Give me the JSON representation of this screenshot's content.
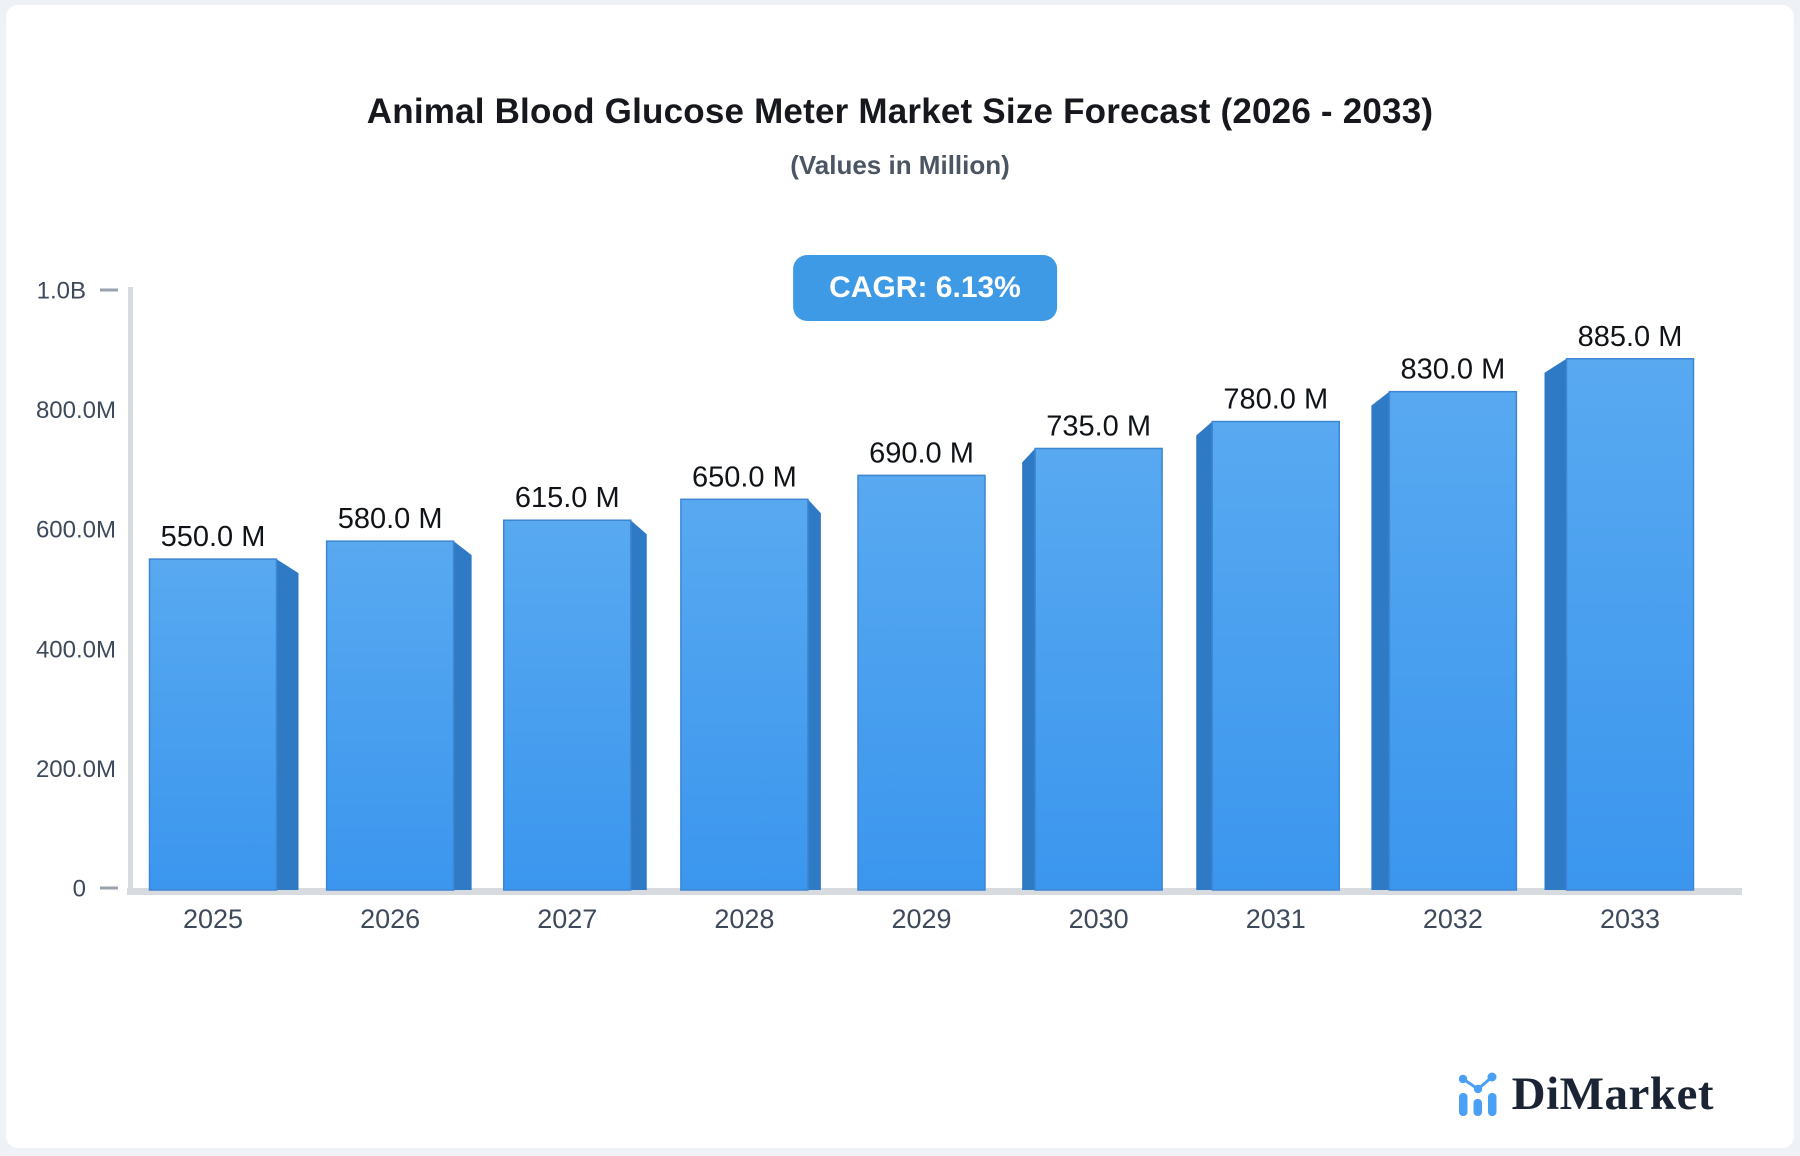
{
  "page": {
    "background": "#eef1f5",
    "card_background": "#ffffff"
  },
  "header": {
    "title": "Animal Blood Glucose Meter Market Size Forecast (2026 - 2033)",
    "subtitle": "(Values in Million)"
  },
  "badge": {
    "label": "CAGR: 6.13%",
    "background": "#3f9ae5",
    "text_color": "#ffffff"
  },
  "chart_data": {
    "type": "bar",
    "title": "Animal Blood Glucose Meter Market Size Forecast (2026 - 2033)",
    "subtitle": "(Values in Million)",
    "cagr": "6.13%",
    "categories": [
      "2025",
      "2026",
      "2027",
      "2028",
      "2029",
      "2030",
      "2031",
      "2032",
      "2033"
    ],
    "values": [
      550,
      580,
      615,
      650,
      690,
      735,
      780,
      830,
      885
    ],
    "value_labels": [
      "550.0 M",
      "580.0 M",
      "615.0 M",
      "650.0 M",
      "690.0 M",
      "735.0 M",
      "780.0 M",
      "830.0 M",
      "885.0 M"
    ],
    "unit": "Million",
    "xlabel": "",
    "ylabel": "",
    "ylim": [
      0,
      1000
    ],
    "grid": false,
    "legend": false,
    "yticks": [
      {
        "label": "0",
        "value": 0,
        "dash": true
      },
      {
        "label": "200.0M",
        "value": 200,
        "dash": false
      },
      {
        "label": "400.0M",
        "value": 400,
        "dash": false
      },
      {
        "label": "600.0M",
        "value": 600,
        "dash": false
      },
      {
        "label": "800.0M",
        "value": 800,
        "dash": false
      },
      {
        "label": "1.0B",
        "value": 1000,
        "dash": true
      }
    ],
    "theme": {
      "bar_top": "#58a9f0",
      "bar_bottom": "#3b96ee",
      "bar_side": "#2e7ac5",
      "bar_border": "#3e86d3",
      "axis": "#d7dade",
      "tick_dash": "#9aa3ad",
      "tick_text": "#3e4a5c",
      "value_label": "#101418"
    }
  },
  "logo": {
    "name": "DiMarket",
    "text_color": "#1a2434",
    "icon_color": "#4aa0f5"
  }
}
